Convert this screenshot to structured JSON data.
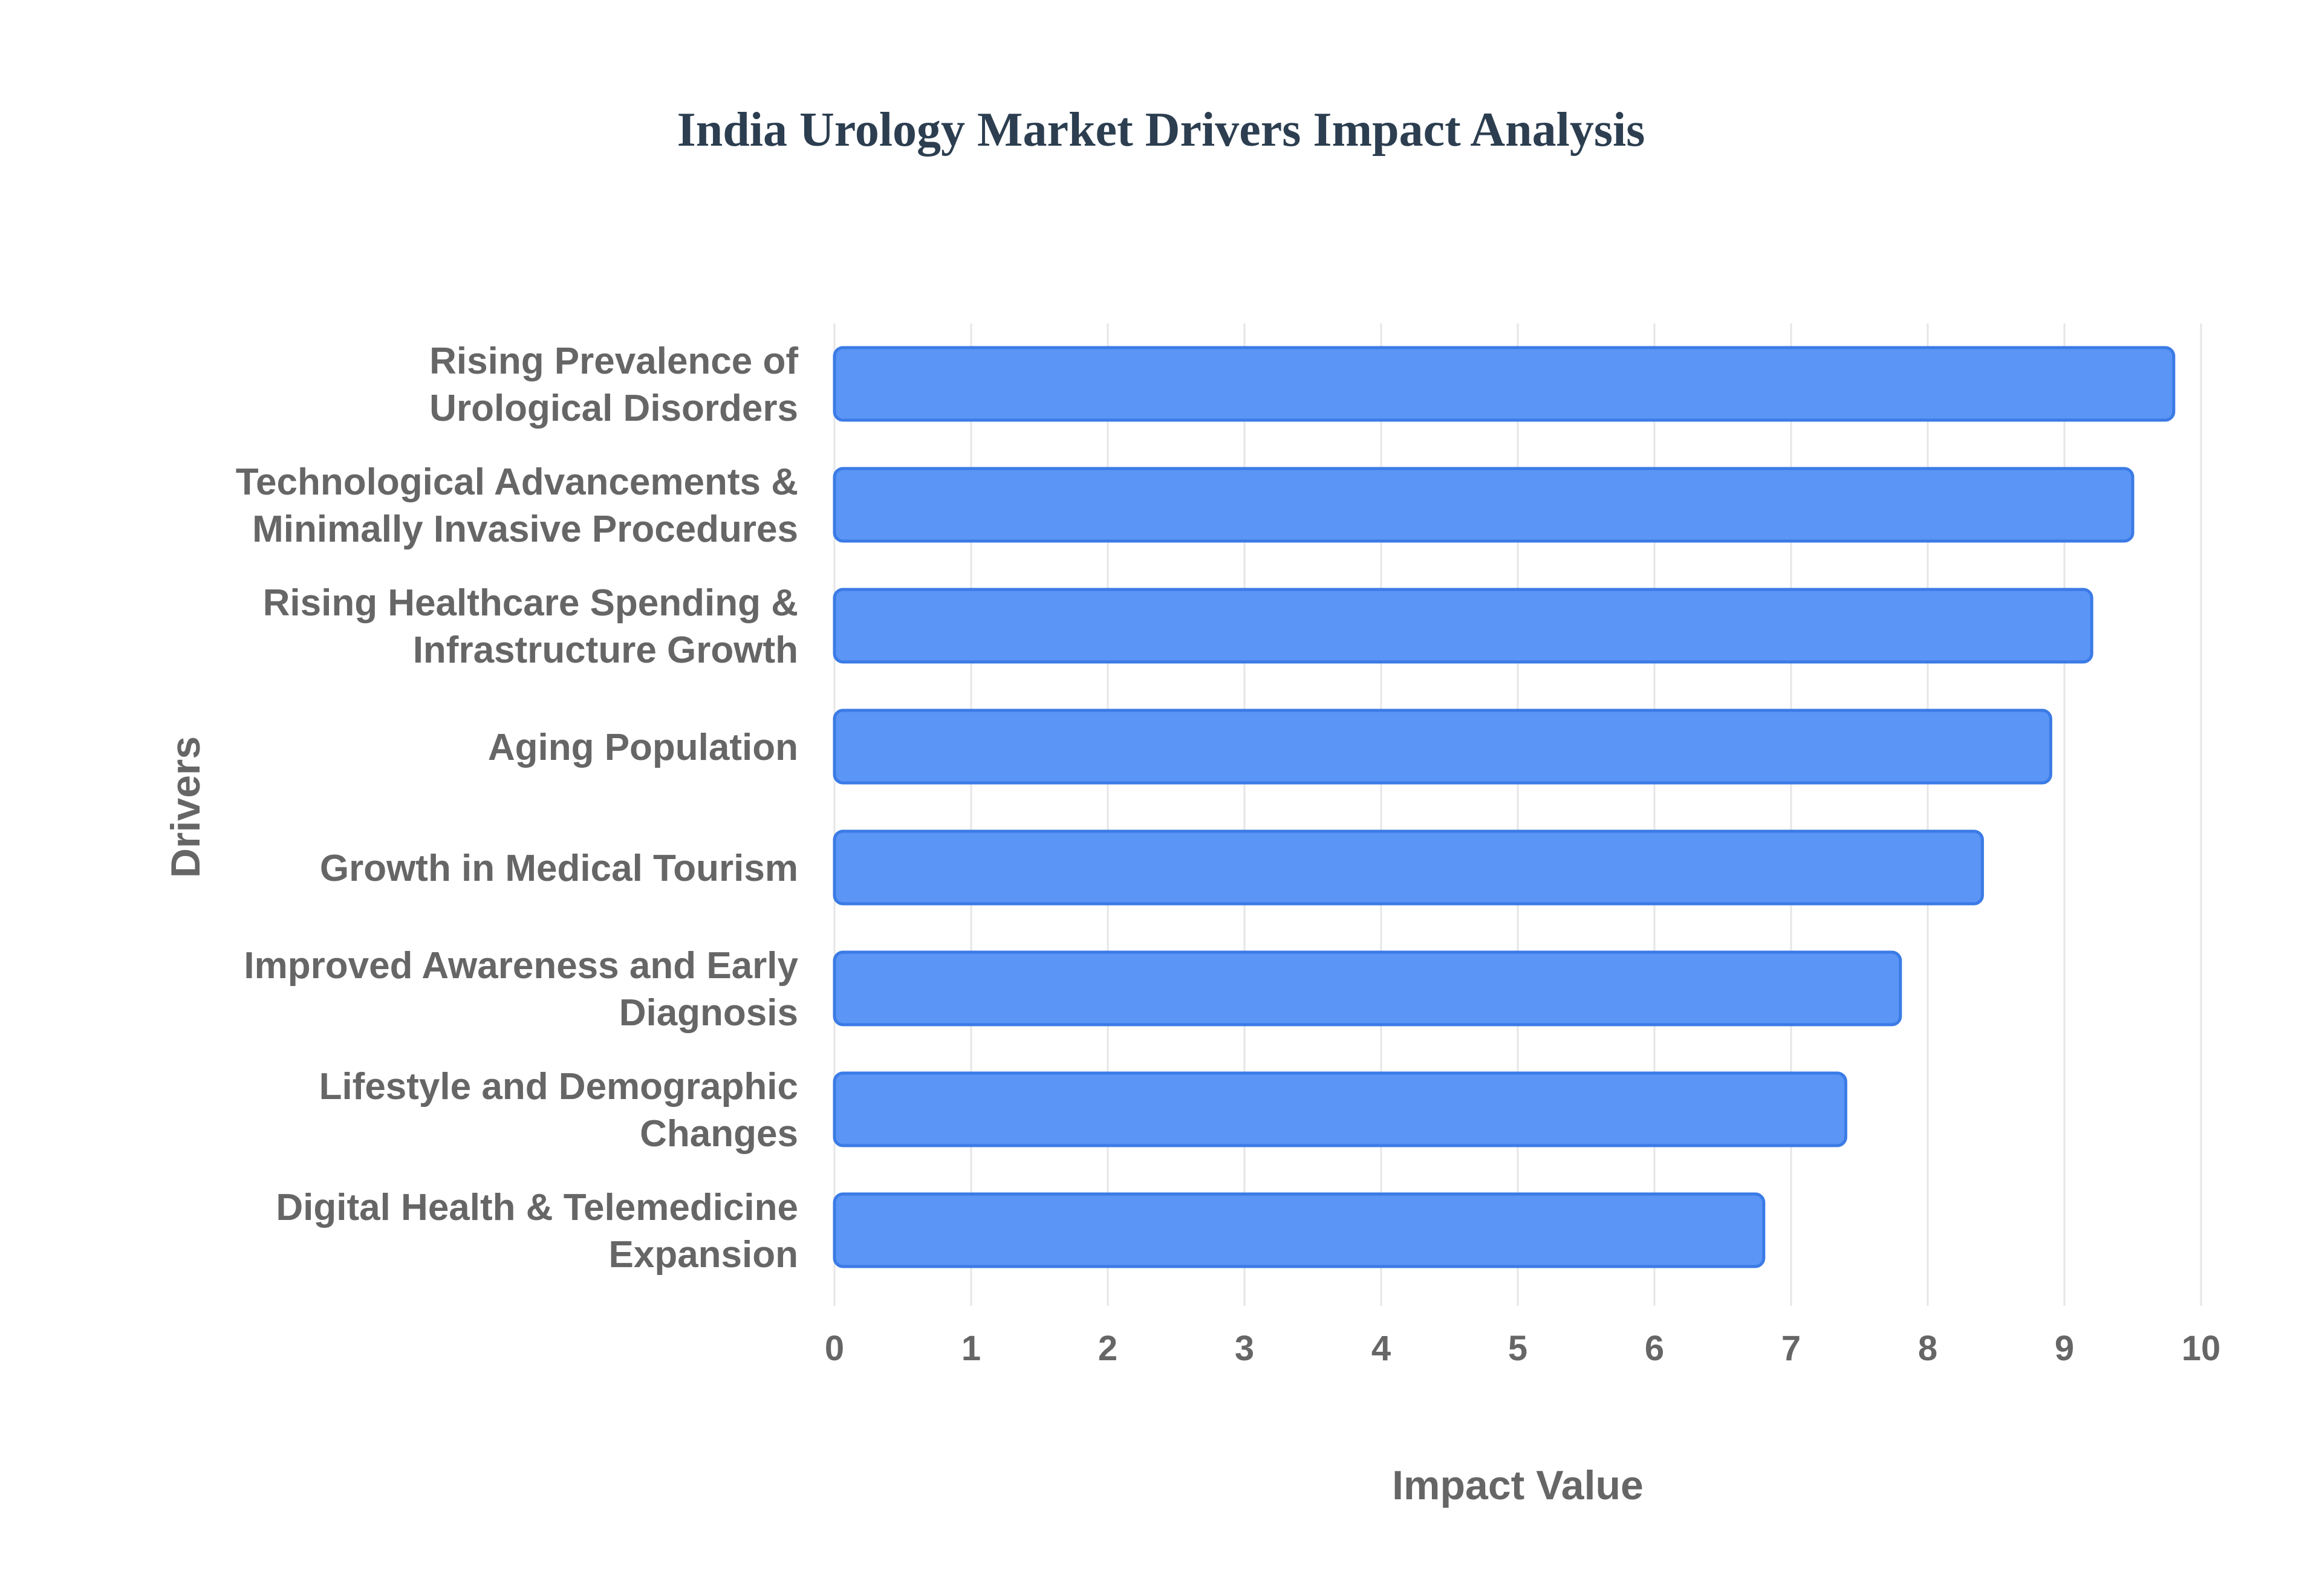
{
  "chart_data": {
    "type": "bar",
    "orientation": "horizontal",
    "title": "India Urology Market Drivers Impact Analysis",
    "xlabel": "Impact Value",
    "ylabel": "Drivers",
    "categories": [
      [
        "Rising Prevalence of",
        "Urological Disorders"
      ],
      [
        "Technological Advancements &",
        "Minimally Invasive Procedures"
      ],
      [
        "Rising Healthcare Spending &",
        "Infrastructure Growth"
      ],
      [
        "Aging Population"
      ],
      [
        "Growth in Medical Tourism"
      ],
      [
        "Improved Awareness and Early",
        "Diagnosis"
      ],
      [
        "Lifestyle and Demographic",
        "Changes"
      ],
      [
        "Digital Health & Telemedicine",
        "Expansion"
      ]
    ],
    "values": [
      9.8,
      9.5,
      9.2,
      8.9,
      8.4,
      7.8,
      7.4,
      6.8
    ],
    "xlim": [
      0,
      10
    ],
    "xticks": [
      "0",
      "1",
      "2",
      "3",
      "4",
      "5",
      "6",
      "7",
      "8",
      "9",
      "10"
    ],
    "grid": true,
    "colors": {
      "bar_fill": "#5b95f5",
      "bar_stroke": "#3b7be6",
      "grid": "#e6e6e6",
      "text": "#666666",
      "title": "#2c3e50"
    }
  }
}
